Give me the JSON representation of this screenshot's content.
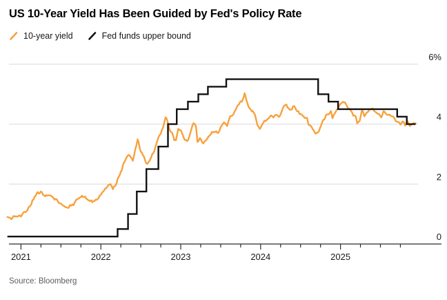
{
  "header": {
    "title": "US 10-Year Yield Has Been Guided by Fed's Policy Rate"
  },
  "legend": [
    {
      "label": "10-year yield",
      "color": "#F7A13C",
      "icon": "diagonal-stroke"
    },
    {
      "label": "Fed funds upper bound",
      "color": "#121212",
      "icon": "diagonal-stroke"
    }
  ],
  "source": "Source: Bloomberg",
  "colors": {
    "yield_line": "#F7A13C",
    "fed_line": "#121212",
    "gridline": "#d9d9d9",
    "axis": "#2b2b2b",
    "tick_label": "#1a1a1a",
    "source_text": "#5c5c5c",
    "background": "#ffffff"
  },
  "chart_data": {
    "type": "line",
    "title": "US 10-Year Yield Has Been Guided by Fed's Policy Rate",
    "xlabel": "",
    "ylabel": "",
    "grid": "horizontal",
    "legend_position": "top-left",
    "x_domain": [
      2020.83,
      2025.94
    ],
    "ylim": [
      0,
      6
    ],
    "y_ticks": [
      {
        "v": 0,
        "label": "0"
      },
      {
        "v": 2,
        "label": "2"
      },
      {
        "v": 4,
        "label": "4"
      },
      {
        "v": 6,
        "label": "6%"
      }
    ],
    "x_ticks": [
      {
        "v": 2021,
        "label": "2021"
      },
      {
        "v": 2022,
        "label": "2022"
      },
      {
        "v": 2023,
        "label": "2023"
      },
      {
        "v": 2024,
        "label": "2024"
      },
      {
        "v": 2025,
        "label": "2025"
      }
    ],
    "minor_tick_step_years": 0.25,
    "series": [
      {
        "name": "10-year yield",
        "draw": "line",
        "color": "#F7A13C",
        "unit": "%",
        "points": [
          [
            2020.83,
            0.9
          ],
          [
            2020.88,
            0.86
          ],
          [
            2020.92,
            0.92
          ],
          [
            2020.96,
            0.93
          ],
          [
            2021.0,
            0.95
          ],
          [
            2021.04,
            1.05
          ],
          [
            2021.08,
            1.12
          ],
          [
            2021.13,
            1.35
          ],
          [
            2021.17,
            1.55
          ],
          [
            2021.21,
            1.7
          ],
          [
            2021.25,
            1.72
          ],
          [
            2021.29,
            1.63
          ],
          [
            2021.33,
            1.6
          ],
          [
            2021.38,
            1.6
          ],
          [
            2021.42,
            1.5
          ],
          [
            2021.46,
            1.45
          ],
          [
            2021.5,
            1.32
          ],
          [
            2021.54,
            1.25
          ],
          [
            2021.58,
            1.22
          ],
          [
            2021.63,
            1.3
          ],
          [
            2021.67,
            1.35
          ],
          [
            2021.71,
            1.5
          ],
          [
            2021.75,
            1.58
          ],
          [
            2021.79,
            1.6
          ],
          [
            2021.83,
            1.48
          ],
          [
            2021.88,
            1.43
          ],
          [
            2021.92,
            1.45
          ],
          [
            2021.96,
            1.5
          ],
          [
            2022.0,
            1.65
          ],
          [
            2022.04,
            1.8
          ],
          [
            2022.08,
            1.95
          ],
          [
            2022.12,
            1.98
          ],
          [
            2022.15,
            1.85
          ],
          [
            2022.18,
            1.95
          ],
          [
            2022.21,
            2.15
          ],
          [
            2022.25,
            2.4
          ],
          [
            2022.29,
            2.72
          ],
          [
            2022.33,
            2.92
          ],
          [
            2022.36,
            2.96
          ],
          [
            2022.4,
            2.78
          ],
          [
            2022.43,
            3.15
          ],
          [
            2022.46,
            3.48
          ],
          [
            2022.5,
            3.08
          ],
          [
            2022.54,
            2.92
          ],
          [
            2022.58,
            2.65
          ],
          [
            2022.63,
            2.88
          ],
          [
            2022.67,
            3.12
          ],
          [
            2022.71,
            3.45
          ],
          [
            2022.75,
            3.72
          ],
          [
            2022.79,
            3.98
          ],
          [
            2022.81,
            4.24
          ],
          [
            2022.83,
            4.12
          ],
          [
            2022.86,
            3.82
          ],
          [
            2022.89,
            3.7
          ],
          [
            2022.92,
            3.5
          ],
          [
            2022.94,
            3.46
          ],
          [
            2022.97,
            3.85
          ],
          [
            2023.0,
            3.78
          ],
          [
            2023.04,
            3.53
          ],
          [
            2023.08,
            3.4
          ],
          [
            2023.12,
            3.68
          ],
          [
            2023.16,
            4.05
          ],
          [
            2023.19,
            3.92
          ],
          [
            2023.21,
            3.42
          ],
          [
            2023.24,
            3.56
          ],
          [
            2023.27,
            3.36
          ],
          [
            2023.31,
            3.46
          ],
          [
            2023.35,
            3.58
          ],
          [
            2023.39,
            3.72
          ],
          [
            2023.43,
            3.76
          ],
          [
            2023.47,
            3.74
          ],
          [
            2023.5,
            3.86
          ],
          [
            2023.54,
            4.06
          ],
          [
            2023.58,
            3.98
          ],
          [
            2023.62,
            4.28
          ],
          [
            2023.66,
            4.32
          ],
          [
            2023.7,
            4.58
          ],
          [
            2023.74,
            4.72
          ],
          [
            2023.78,
            4.82
          ],
          [
            2023.8,
            4.99
          ],
          [
            2023.82,
            4.84
          ],
          [
            2023.85,
            4.6
          ],
          [
            2023.88,
            4.48
          ],
          [
            2023.9,
            4.42
          ],
          [
            2023.93,
            4.28
          ],
          [
            2023.96,
            3.96
          ],
          [
            2023.99,
            3.84
          ],
          [
            2024.02,
            4.02
          ],
          [
            2024.06,
            4.12
          ],
          [
            2024.1,
            4.18
          ],
          [
            2024.13,
            4.3
          ],
          [
            2024.16,
            4.2
          ],
          [
            2024.19,
            4.32
          ],
          [
            2024.23,
            4.24
          ],
          [
            2024.27,
            4.44
          ],
          [
            2024.31,
            4.68
          ],
          [
            2024.35,
            4.52
          ],
          [
            2024.38,
            4.46
          ],
          [
            2024.42,
            4.6
          ],
          [
            2024.46,
            4.42
          ],
          [
            2024.5,
            4.36
          ],
          [
            2024.54,
            4.26
          ],
          [
            2024.58,
            4.18
          ],
          [
            2024.6,
            3.96
          ],
          [
            2024.63,
            3.92
          ],
          [
            2024.66,
            3.82
          ],
          [
            2024.7,
            3.66
          ],
          [
            2024.73,
            3.76
          ],
          [
            2024.77,
            4.06
          ],
          [
            2024.81,
            4.26
          ],
          [
            2024.85,
            4.36
          ],
          [
            2024.88,
            4.44
          ],
          [
            2024.9,
            4.22
          ],
          [
            2024.94,
            4.42
          ],
          [
            2024.98,
            4.6
          ],
          [
            2025.03,
            4.79
          ],
          [
            2025.07,
            4.66
          ],
          [
            2025.1,
            4.54
          ],
          [
            2025.13,
            4.46
          ],
          [
            2025.16,
            4.32
          ],
          [
            2025.19,
            4.24
          ],
          [
            2025.21,
            4.06
          ],
          [
            2025.24,
            4.12
          ],
          [
            2025.27,
            4.48
          ],
          [
            2025.3,
            4.28
          ],
          [
            2025.33,
            4.38
          ],
          [
            2025.36,
            4.48
          ],
          [
            2025.39,
            4.54
          ],
          [
            2025.42,
            4.46
          ],
          [
            2025.45,
            4.4
          ],
          [
            2025.48,
            4.3
          ],
          [
            2025.51,
            4.26
          ],
          [
            2025.54,
            4.42
          ],
          [
            2025.57,
            4.36
          ],
          [
            2025.6,
            4.3
          ],
          [
            2025.63,
            4.26
          ],
          [
            2025.66,
            4.22
          ],
          [
            2025.69,
            4.14
          ],
          [
            2025.72,
            4.08
          ],
          [
            2025.75,
            3.96
          ],
          [
            2025.78,
            4.1
          ],
          [
            2025.81,
            3.98
          ],
          [
            2025.84,
            4.12
          ],
          [
            2025.87,
            3.93
          ],
          [
            2025.9,
            4.0
          ],
          [
            2025.94,
            4.03
          ]
        ]
      },
      {
        "name": "Fed funds upper bound",
        "draw": "step",
        "color": "#121212",
        "unit": "%",
        "points": [
          [
            2020.83,
            0.25
          ],
          [
            2022.21,
            0.5
          ],
          [
            2022.34,
            1.0
          ],
          [
            2022.45,
            1.75
          ],
          [
            2022.57,
            2.5
          ],
          [
            2022.72,
            3.25
          ],
          [
            2022.84,
            4.0
          ],
          [
            2022.95,
            4.5
          ],
          [
            2023.09,
            4.75
          ],
          [
            2023.22,
            5.0
          ],
          [
            2023.34,
            5.25
          ],
          [
            2023.57,
            5.5
          ],
          [
            2024.72,
            5.0
          ],
          [
            2024.85,
            4.75
          ],
          [
            2024.97,
            4.5
          ],
          [
            2025.71,
            4.25
          ],
          [
            2025.83,
            4.0
          ],
          [
            2025.94,
            4.0
          ]
        ]
      }
    ]
  }
}
